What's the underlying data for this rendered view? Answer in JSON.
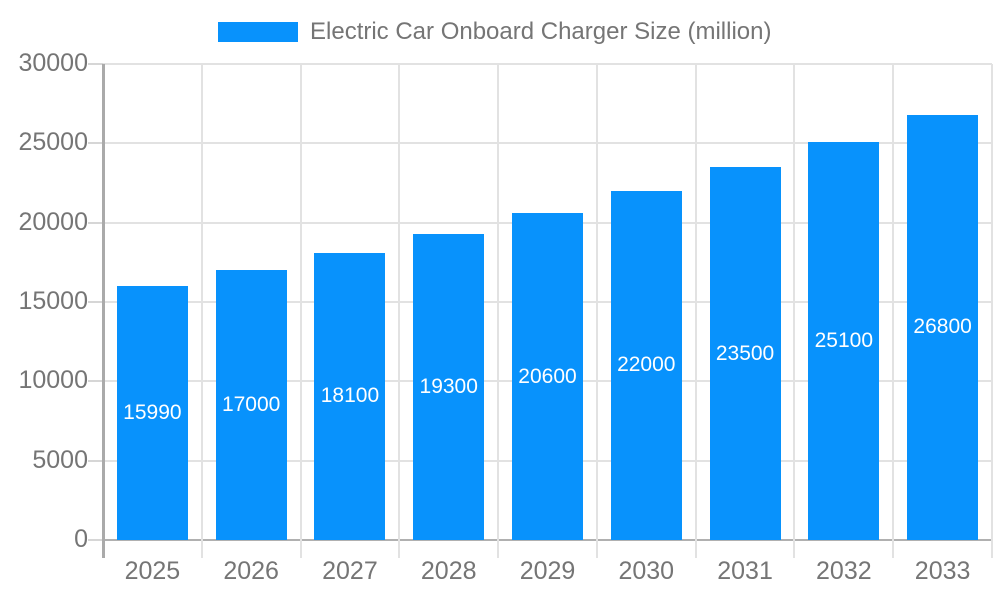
{
  "chart_data": {
    "type": "bar",
    "title": "Electric Car Onboard Charger Size (million)",
    "legend": {
      "label": "Electric Car Onboard Charger Size (million)",
      "position": "top"
    },
    "categories": [
      "2025",
      "2026",
      "2027",
      "2028",
      "2029",
      "2030",
      "2031",
      "2032",
      "2033"
    ],
    "series": [
      {
        "name": "Electric Car Onboard Charger Size (million)",
        "values": [
          15990,
          17000,
          18100,
          19300,
          20600,
          22000,
          23500,
          25100,
          26800
        ]
      }
    ],
    "bar_value_labels": [
      "15990",
      "17000",
      "18100",
      "19300",
      "20600",
      "22000",
      "23500",
      "25100",
      "26800"
    ],
    "xlabel": "",
    "ylabel": "",
    "ylim": [
      0,
      30000
    ],
    "yticks": [
      0,
      5000,
      10000,
      15000,
      20000,
      25000,
      30000
    ],
    "ytick_labels": [
      "0",
      "5000",
      "10000",
      "15000",
      "20000",
      "25000",
      "30000"
    ],
    "grid": true,
    "colors": {
      "bar": "#0892fc",
      "bar_label": "#ffffff",
      "axis_label": "#757575",
      "legend_text": "#757575",
      "gridline": "#e2e2e2",
      "baseline": "#b0b0b0",
      "axis_line": "#aaaaaa",
      "tick": "#d6d6d6",
      "background": "#ffffff"
    }
  }
}
